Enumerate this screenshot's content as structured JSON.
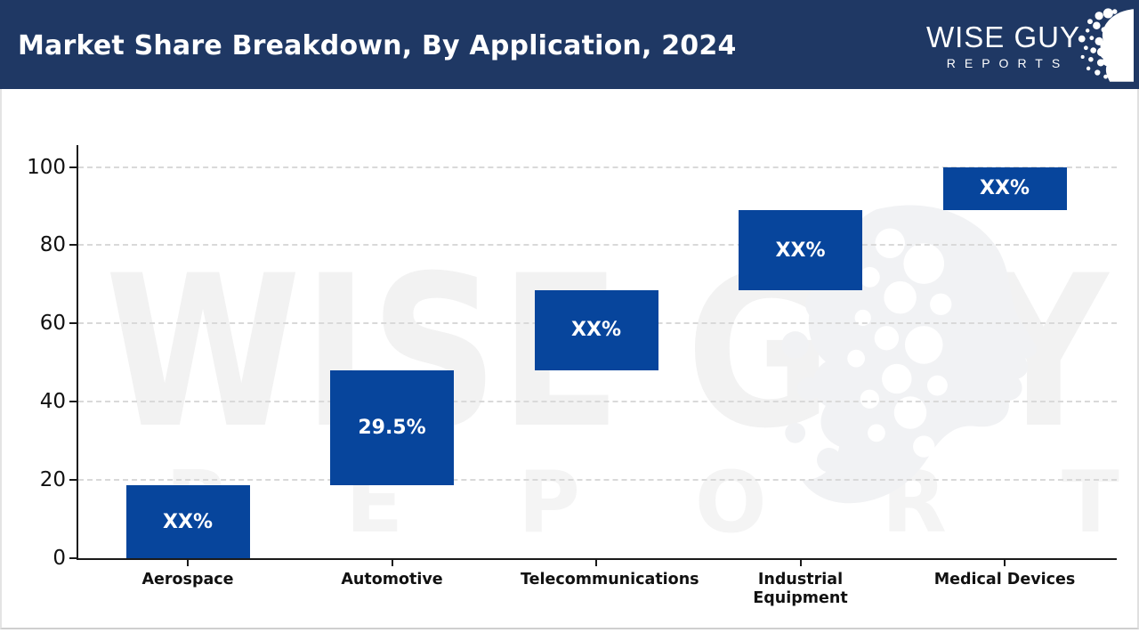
{
  "header": {
    "title": "Market Share Breakdown, By Application, 2024",
    "background_color": "#1f3864",
    "logo": {
      "line1": "WISE GUY",
      "line2": "REPORTS"
    }
  },
  "watermark": {
    "line1": "WISE GUY",
    "line2": "R E P O R T S"
  },
  "chart_data": {
    "type": "bar",
    "subtype": "waterfall",
    "title": "Market Share Breakdown, By Application, 2024",
    "categories": [
      "Aerospace",
      "Automotive",
      "Telecommunications",
      "Industrial Equipment",
      "Medical Devices"
    ],
    "segments": [
      {
        "category": "Aerospace",
        "start": 0,
        "end": 18.6,
        "value_label": "XX%"
      },
      {
        "category": "Automotive",
        "start": 18.6,
        "end": 48.1,
        "value_label": "29.5%",
        "value": 29.5
      },
      {
        "category": "Telecommunications",
        "start": 48.1,
        "end": 68.4,
        "value_label": "XX%"
      },
      {
        "category": "Industrial Equipment",
        "start": 68.4,
        "end": 89.0,
        "value_label": "XX%"
      },
      {
        "category": "Medical Devices",
        "start": 89.0,
        "end": 100,
        "value_label": "XX%"
      }
    ],
    "y_ticks": [
      0,
      20,
      40,
      60,
      80,
      100
    ],
    "ylim": [
      0,
      105
    ],
    "xlabel": "",
    "ylabel": "",
    "grid": "horizontal-dashed",
    "legend": "none",
    "bar_color": "#07459c",
    "bar_label_color": "#ffffff",
    "gridline_color": "#d9d9d9",
    "axis_color": "#1a1a1a"
  }
}
